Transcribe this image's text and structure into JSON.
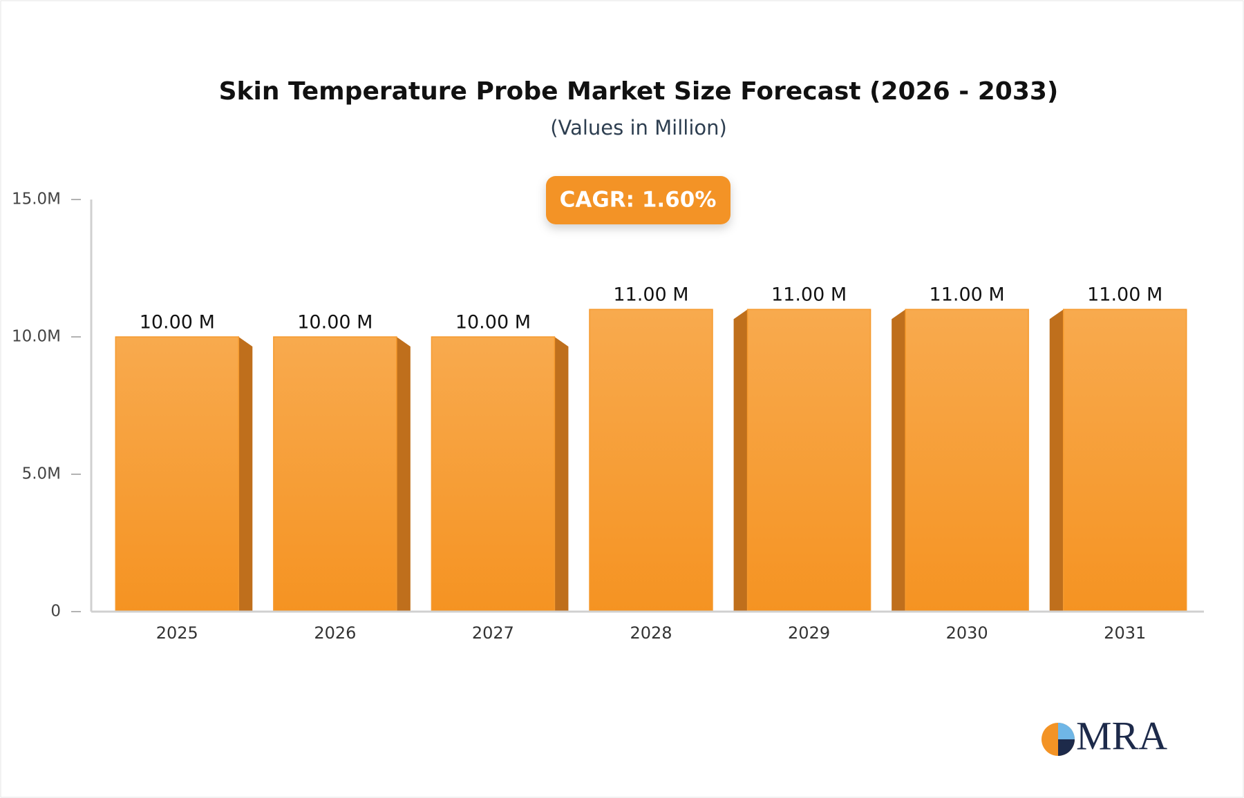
{
  "chart_data": {
    "type": "bar",
    "title": "Skin Temperature Probe Market Size Forecast (2026 - 2033)",
    "subtitle": "(Values in Million)",
    "annotation": "CAGR: 1.60%",
    "logo": "MRA",
    "categories": [
      "2025",
      "2026",
      "2027",
      "2028",
      "2029",
      "2030",
      "2031"
    ],
    "values": [
      10,
      10,
      10,
      11,
      11,
      11,
      11
    ],
    "value_labels": [
      "10.00 M",
      "10.00 M",
      "10.00 M",
      "11.00 M",
      "11.00 M",
      "11.00 M",
      "11.00 M"
    ],
    "color": "#f59a2e",
    "ylim": [
      0,
      15
    ],
    "yticks": [
      0,
      {
        "value": 5,
        "label": "5.0M"
      },
      {
        "value": 10,
        "label": "10.0M"
      },
      {
        "value": 15,
        "label": "15.0M"
      }
    ]
  }
}
